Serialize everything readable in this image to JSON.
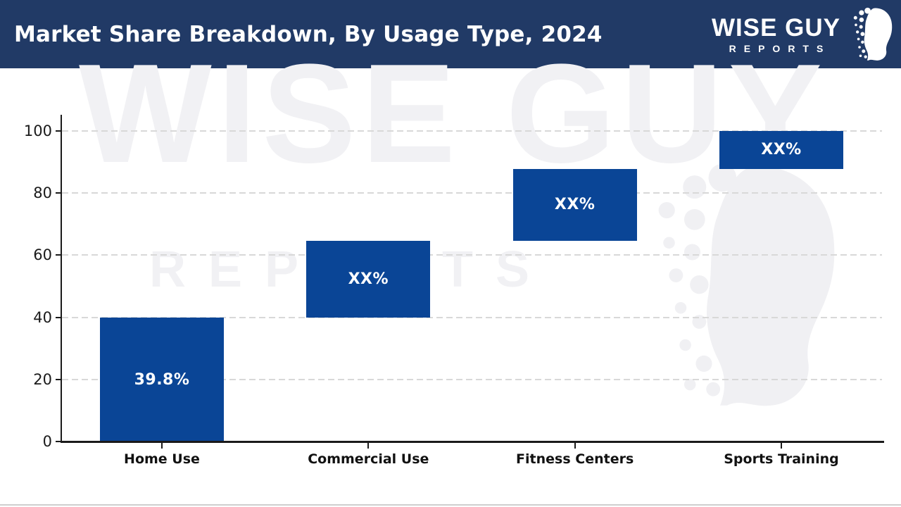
{
  "header": {
    "title": "Market Share Breakdown, By Usage Type, 2024",
    "background_color": "#213a66",
    "logo": {
      "line1": "WISE GUY",
      "line2": "REPORTS"
    }
  },
  "watermark": {
    "line1": "WISE GUY",
    "line2": "REPORTS"
  },
  "chart_data": {
    "type": "bar",
    "subtype": "waterfall",
    "title": "Market Share Breakdown, By Usage Type, 2024",
    "categories": [
      "Home Use",
      "Commercial Use",
      "Fitness Centers",
      "Sports Training"
    ],
    "segments": [
      {
        "category": "Home Use",
        "start": 0,
        "end": 39.8,
        "value": 39.8,
        "label": "39.8%"
      },
      {
        "category": "Commercial Use",
        "start": 39.8,
        "end": 64.6,
        "value": 24.8,
        "label": "XX%"
      },
      {
        "category": "Fitness Centers",
        "start": 64.6,
        "end": 87.8,
        "value": 23.2,
        "label": "XX%"
      },
      {
        "category": "Sports Training",
        "start": 87.8,
        "end": 100,
        "value": 12.2,
        "label": "XX%"
      }
    ],
    "y_ticks": [
      0,
      20,
      40,
      60,
      80,
      100
    ],
    "ylim": [
      0,
      100
    ],
    "xlabel": "",
    "ylabel": "",
    "grid": "horizontal-dashed",
    "legend": "none",
    "bar_color": "#0a4596",
    "bar_label_color": "#ffffff",
    "axis_color": "#1a1a1a",
    "gridline_color": "#d8d8d8"
  }
}
